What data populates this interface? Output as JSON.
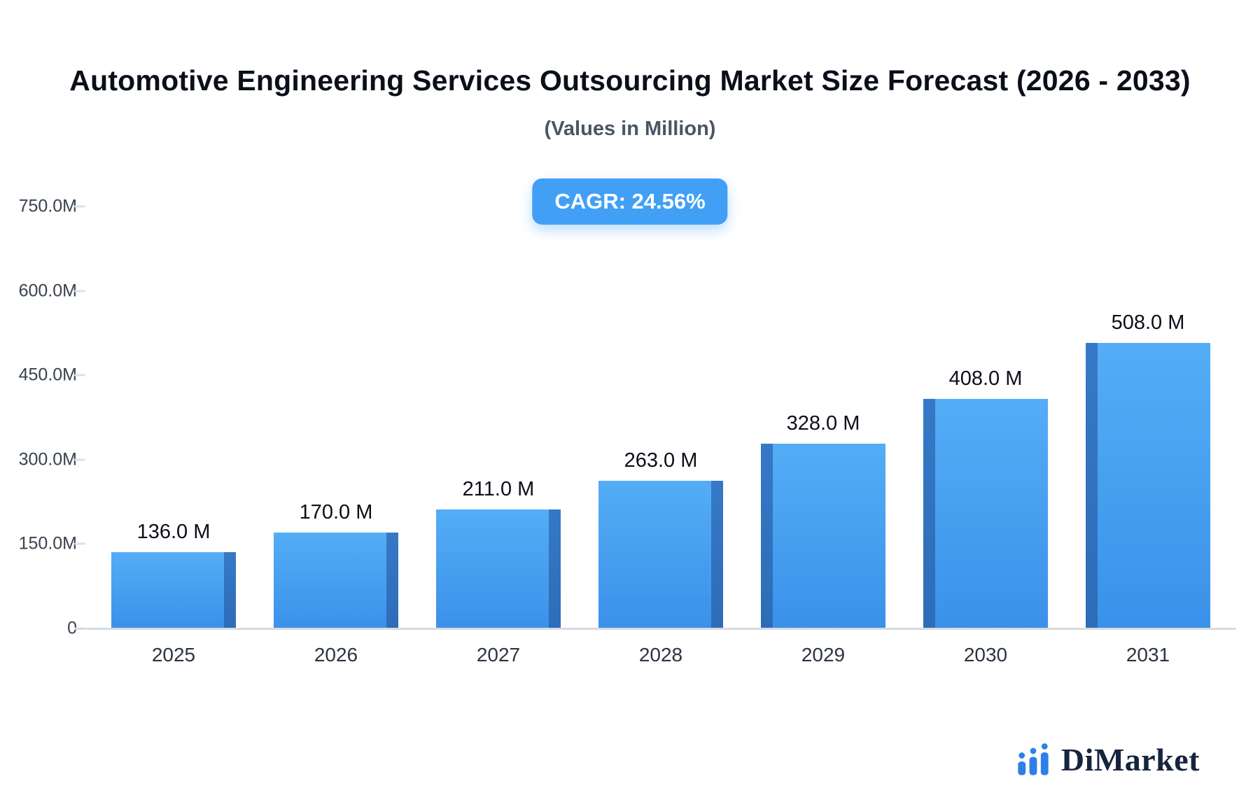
{
  "header": {
    "title": "Automotive Engineering Services Outsourcing Market Size Forecast (2026 - 2033)",
    "subtitle": "(Values in Million)",
    "cagr_badge": "CAGR: 24.56%"
  },
  "footer": {
    "brand": "DiMarket"
  },
  "colors": {
    "bar_face": "#3f9df1",
    "bar_side": "#2d6fc0",
    "badge": "#41a0f5",
    "logo_icon": "#2e7fe8",
    "logo_text": "#17243f"
  },
  "chart_data": {
    "type": "bar",
    "title": "Automotive Engineering Services Outsourcing Market Size Forecast (2026 - 2033)",
    "subtitle": "(Values in Million)",
    "categories": [
      "2025",
      "2026",
      "2027",
      "2028",
      "2029",
      "2030",
      "2031"
    ],
    "values": [
      136,
      170,
      211,
      263,
      328,
      408,
      508
    ],
    "value_labels": [
      "136.0 M",
      "170.0 M",
      "211.0 M",
      "263.0 M",
      "328.0 M",
      "408.0 M",
      "508.0 M"
    ],
    "unit": "Million",
    "ylim": [
      0,
      750
    ],
    "y_ticks": [
      {
        "value": 750,
        "label": "750.0M"
      },
      {
        "value": 600,
        "label": "600.0M"
      },
      {
        "value": 450,
        "label": "450.0M"
      },
      {
        "value": 300,
        "label": "300.0M"
      },
      {
        "value": 150,
        "label": "150.0M"
      },
      {
        "value": 0,
        "label": "0"
      }
    ],
    "grid": false,
    "legend": "none",
    "annotation": "CAGR: 24.56%"
  }
}
